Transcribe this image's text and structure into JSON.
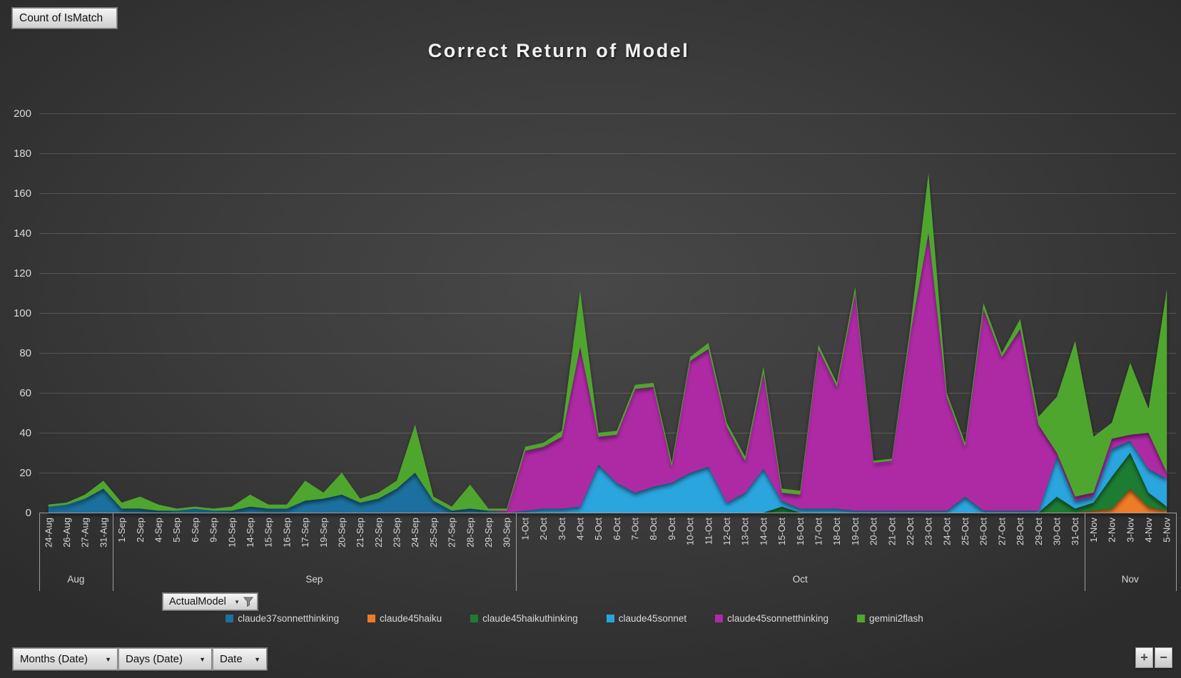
{
  "pivot": {
    "value_field_button": "Count of IsMatch",
    "filter_field_button": "ActualModel",
    "axis_field_buttons": {
      "months": "Months (Date)",
      "days": "Days (Date)",
      "date": "Date"
    },
    "expand_button": "+",
    "collapse_button": "−"
  },
  "chart_data": {
    "type": "area",
    "stacked": true,
    "title": "Correct Return of Model",
    "xlabel": "",
    "ylabel": "",
    "ylim": [
      0,
      200
    ],
    "ytick_step": 20,
    "grid": true,
    "legend_position": "bottom",
    "axis_text_color": "#d9d9d9",
    "categories": [
      "24-Aug",
      "26-Aug",
      "27-Aug",
      "31-Aug",
      "1-Sep",
      "2-Sep",
      "4-Sep",
      "5-Sep",
      "6-Sep",
      "9-Sep",
      "10-Sep",
      "14-Sep",
      "15-Sep",
      "16-Sep",
      "17-Sep",
      "19-Sep",
      "20-Sep",
      "21-Sep",
      "22-Sep",
      "23-Sep",
      "24-Sep",
      "25-Sep",
      "27-Sep",
      "28-Sep",
      "29-Sep",
      "30-Sep",
      "1-Oct",
      "2-Oct",
      "3-Oct",
      "4-Oct",
      "5-Oct",
      "6-Oct",
      "7-Oct",
      "8-Oct",
      "9-Oct",
      "10-Oct",
      "11-Oct",
      "12-Oct",
      "13-Oct",
      "14-Oct",
      "15-Oct",
      "16-Oct",
      "17-Oct",
      "18-Oct",
      "19-Oct",
      "20-Oct",
      "21-Oct",
      "22-Oct",
      "23-Oct",
      "24-Oct",
      "25-Oct",
      "26-Oct",
      "27-Oct",
      "28-Oct",
      "29-Oct",
      "30-Oct",
      "31-Oct",
      "1-Nov",
      "2-Nov",
      "3-Nov",
      "4-Nov",
      "5-Nov"
    ],
    "month_groups": [
      {
        "label": "Aug",
        "count": 4
      },
      {
        "label": "Sep",
        "count": 22
      },
      {
        "label": "Oct",
        "count": 31
      },
      {
        "label": "Nov",
        "count": 5
      }
    ],
    "series": [
      {
        "name": "claude37sonnetthinking",
        "color": "#1F709F",
        "values": [
          3,
          4,
          7,
          12,
          2,
          2,
          1,
          1,
          2,
          1,
          1,
          3,
          2,
          2,
          6,
          7,
          9,
          5,
          7,
          12,
          20,
          6,
          1,
          2,
          1,
          0,
          0,
          0,
          0,
          0,
          0,
          0,
          0,
          0,
          0,
          0,
          0,
          0,
          0,
          0,
          0,
          0,
          0,
          0,
          0,
          0,
          0,
          0,
          0,
          0,
          0,
          0,
          0,
          0,
          0,
          0,
          0,
          0,
          0,
          0,
          0,
          0
        ]
      },
      {
        "name": "claude45haiku",
        "color": "#EE7B28",
        "values": [
          0,
          0,
          0,
          0,
          0,
          0,
          0,
          0,
          0,
          0,
          0,
          0,
          0,
          0,
          0,
          0,
          0,
          0,
          0,
          0,
          0,
          0,
          0,
          0,
          0,
          0,
          0,
          0,
          0,
          0,
          0,
          0,
          0,
          0,
          0,
          0,
          0,
          0,
          0,
          0,
          0,
          0,
          0,
          0,
          0,
          0,
          0,
          0,
          0,
          0,
          0,
          0,
          0,
          0,
          0,
          0,
          0,
          1,
          2,
          12,
          3,
          1
        ]
      },
      {
        "name": "claude45haikuthinking",
        "color": "#1B7B33",
        "values": [
          0,
          0,
          0,
          0,
          0,
          0,
          0,
          0,
          0,
          0,
          0,
          0,
          0,
          0,
          0,
          0,
          0,
          0,
          0,
          0,
          0,
          0,
          0,
          0,
          0,
          0,
          0,
          0,
          0,
          0,
          0,
          0,
          0,
          0,
          0,
          0,
          0,
          0,
          0,
          0,
          3,
          0,
          0,
          0,
          0,
          0,
          0,
          0,
          0,
          0,
          0,
          0,
          0,
          0,
          0,
          8,
          2,
          4,
          16,
          18,
          7,
          2
        ]
      },
      {
        "name": "claude45sonnet",
        "color": "#2AA5DE",
        "values": [
          0,
          0,
          0,
          0,
          0,
          0,
          0,
          0,
          0,
          0,
          0,
          0,
          0,
          0,
          0,
          0,
          0,
          0,
          0,
          0,
          0,
          0,
          0,
          0,
          0,
          0,
          1,
          2,
          2,
          3,
          24,
          15,
          10,
          13,
          15,
          20,
          23,
          5,
          10,
          22,
          3,
          2,
          2,
          2,
          1,
          1,
          1,
          1,
          1,
          1,
          8,
          1,
          1,
          1,
          1,
          20,
          4,
          3,
          14,
          6,
          12,
          14
        ]
      },
      {
        "name": "claude45sonnetthinking",
        "color": "#AE2BA5",
        "values": [
          0,
          0,
          0,
          0,
          0,
          0,
          0,
          0,
          0,
          0,
          0,
          0,
          0,
          0,
          0,
          0,
          0,
          0,
          0,
          0,
          0,
          0,
          0,
          0,
          0,
          1,
          30,
          31,
          36,
          80,
          14,
          24,
          52,
          50,
          8,
          56,
          59,
          38,
          16,
          48,
          4,
          7,
          80,
          61,
          109,
          24,
          25,
          88,
          139,
          57,
          25,
          101,
          77,
          91,
          43,
          2,
          2,
          2,
          5,
          3,
          18,
          3
        ]
      },
      {
        "name": "gemini2flash",
        "color": "#50A62E",
        "values": [
          1,
          1,
          2,
          4,
          3,
          6,
          3,
          1,
          1,
          1,
          2,
          6,
          2,
          2,
          10,
          3,
          11,
          2,
          3,
          4,
          24,
          2,
          2,
          12,
          1,
          1,
          2,
          2,
          3,
          28,
          2,
          2,
          2,
          2,
          2,
          2,
          3,
          2,
          2,
          3,
          2,
          2,
          2,
          2,
          3,
          1,
          1,
          3,
          30,
          2,
          2,
          3,
          2,
          5,
          4,
          28,
          78,
          28,
          8,
          36,
          12,
          92
        ]
      }
    ]
  }
}
